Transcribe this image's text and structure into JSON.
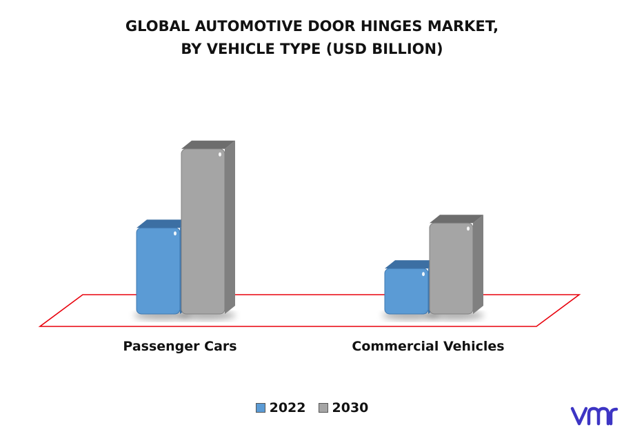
{
  "chart_data": {
    "type": "bar",
    "title_line1": "GLOBAL AUTOMOTIVE DOOR HINGES MARKET,",
    "title_line2": "BY VEHICLE TYPE (USD BILLION)",
    "categories": [
      "Passenger Cars",
      "Commercial Vehicles"
    ],
    "series": [
      {
        "name": "2022",
        "values": [
          3.6,
          1.9
        ],
        "color": "#5b9bd5"
      },
      {
        "name": "2030",
        "values": [
          6.9,
          3.8
        ],
        "color": "#a5a5a5"
      }
    ],
    "ylim": [
      0,
      7.5
    ],
    "grid": false,
    "legend_position": "bottom",
    "floor_color": "#e8000b"
  },
  "brand": {
    "logo_icon": "vmr-logo-icon",
    "logo_color": "#3d35c4"
  }
}
